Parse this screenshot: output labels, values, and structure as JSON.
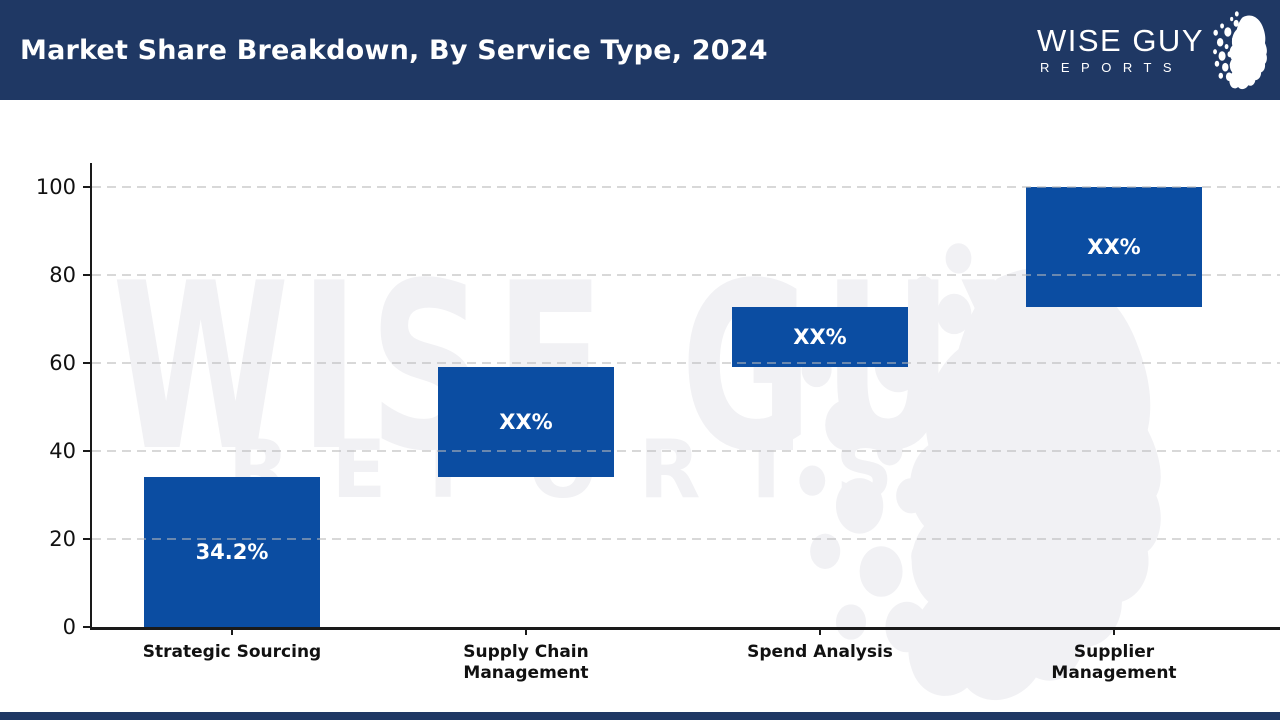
{
  "header": {
    "title": "Market Share Breakdown, By Service Type, 2024",
    "brand": {
      "line1": "WISE GUY",
      "line2": "REPORTS"
    },
    "bg_color": "#1f3864"
  },
  "watermark": {
    "line1": "WISE GUY",
    "line2": "REPORTS"
  },
  "footer": {
    "bg_color": "#1f3864"
  },
  "chart_data": {
    "type": "bar",
    "variant": "waterfall",
    "title": "Market Share Breakdown, By Service Type, 2024",
    "xlabel": "",
    "ylabel": "",
    "categories": [
      "Strategic Sourcing",
      "Supply Chain\nManagement",
      "Spend Analysis",
      "Supplier\nManagement"
    ],
    "segments": [
      {
        "category": "Strategic Sourcing",
        "start": 0,
        "end": 34.2,
        "label": "34.2%"
      },
      {
        "category": "Supply Chain Management",
        "start": 34.2,
        "end": 59.2,
        "label": "XX%"
      },
      {
        "category": "Spend Analysis",
        "start": 59.2,
        "end": 72.7,
        "label": "XX%"
      },
      {
        "category": "Supplier Management",
        "start": 72.7,
        "end": 100,
        "label": "XX%"
      }
    ],
    "yticks": [
      0,
      20,
      40,
      60,
      80,
      100
    ],
    "ylim": [
      0,
      105.5
    ],
    "bar_color": "#0b4da2",
    "grid": true,
    "gridline_style": "dashed",
    "legend": false
  }
}
